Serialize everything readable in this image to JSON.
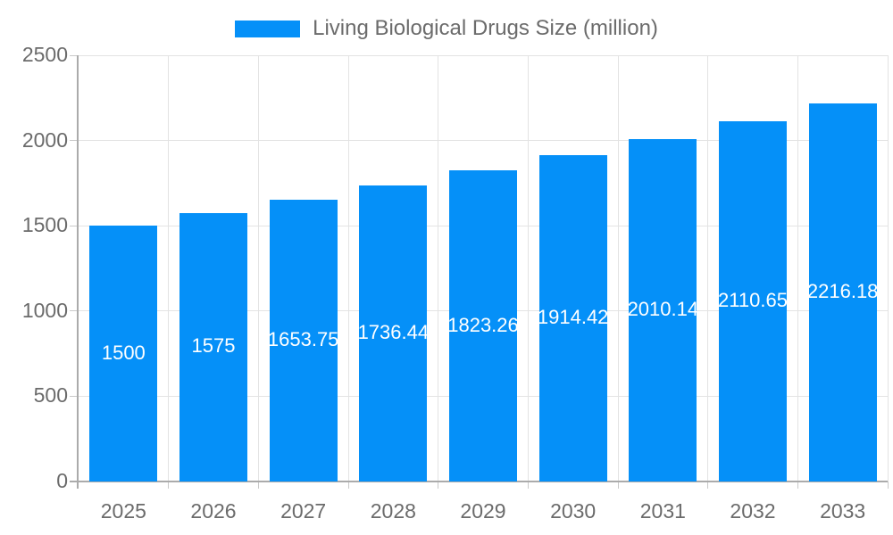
{
  "legend": {
    "label": "Living Biological Drugs Size (million)"
  },
  "chart_data": {
    "type": "bar",
    "title": "Living Biological Drugs Size (million)",
    "categories": [
      "2025",
      "2026",
      "2027",
      "2028",
      "2029",
      "2030",
      "2031",
      "2032",
      "2033"
    ],
    "values": [
      1500,
      1575,
      1653.75,
      1736.44,
      1823.26,
      1914.42,
      2010.14,
      2110.65,
      2216.18
    ],
    "value_labels": [
      "1500",
      "1575",
      "1653.75",
      "1736.44",
      "1823.26",
      "1914.42",
      "2010.14",
      "2110.65",
      "2216.18"
    ],
    "xlabel": "",
    "ylabel": "",
    "ylim": [
      0,
      2500
    ],
    "yticks": [
      0,
      500,
      1000,
      1500,
      2000,
      2500
    ],
    "grid": true,
    "legend_position": "top",
    "value_label_position": "center-of-bar"
  },
  "colors": {
    "bar": "#0590f8",
    "grid": "#e3e3e3",
    "axis": "#ababab",
    "tick": "#c9c9c9",
    "text": "#6b6b6b",
    "value_label": "#ffffff",
    "background": "#ffffff"
  }
}
